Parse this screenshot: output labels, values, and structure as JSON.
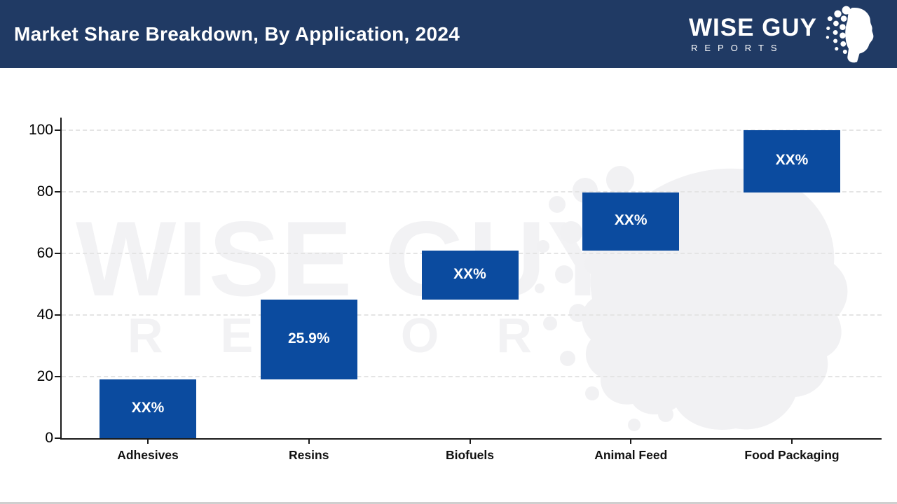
{
  "header": {
    "title": "Market Share Breakdown, By Application, 2024",
    "logo": {
      "line1": "WISE GUY",
      "line2": "REPORTS"
    }
  },
  "watermark": {
    "line1": "WISE GUY",
    "line2": "REPORTS"
  },
  "colors": {
    "header_bg": "#203a64",
    "bar": "#0b4b9f",
    "bar_label": "#ffffff",
    "axis": "#1a1a1a",
    "grid": "#e4e4e4",
    "watermark": "#f2f2f4"
  },
  "chart_data": {
    "type": "bar",
    "subtype": "waterfall",
    "title": "Market Share Breakdown, By Application, 2024",
    "categories": [
      "Adhesives",
      "Resins",
      "Biofuels",
      "Animal Feed",
      "Food Packaging"
    ],
    "series": [
      {
        "name": "Market Share (%)",
        "starts": [
          0,
          19.0,
          44.9,
          60.9,
          79.8
        ],
        "ends": [
          19.0,
          44.9,
          60.9,
          79.8,
          100
        ],
        "values": [
          19.0,
          25.9,
          16.0,
          18.9,
          20.2
        ]
      }
    ],
    "bar_labels": [
      "XX%",
      "25.9%",
      "XX%",
      "XX%",
      "XX%"
    ],
    "xlabel": "",
    "ylabel": "",
    "ylim": [
      0,
      100
    ],
    "yticks": [
      0,
      20,
      40,
      60,
      80,
      100
    ],
    "grid": "horizontal-dashed",
    "legend": "none"
  }
}
